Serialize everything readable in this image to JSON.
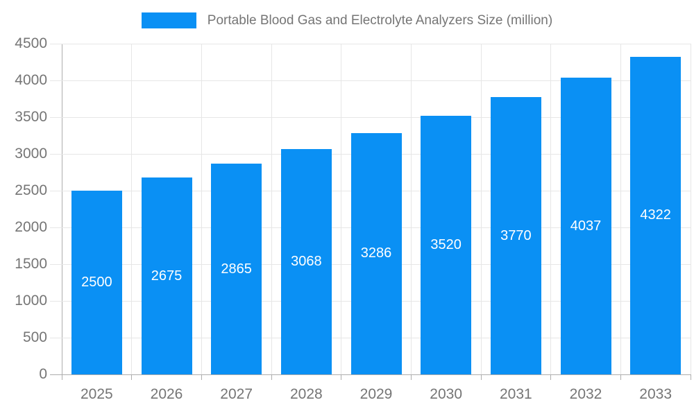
{
  "chart_data": {
    "type": "bar",
    "title": "Portable Blood Gas and Electrolyte Analyzers Size (million)",
    "legend": {
      "label": "Portable Blood Gas and Electrolyte Analyzers Size (million)",
      "position": "top"
    },
    "categories": [
      "2025",
      "2026",
      "2027",
      "2028",
      "2029",
      "2030",
      "2031",
      "2032",
      "2033"
    ],
    "values": [
      2500,
      2675,
      2865,
      3068,
      3286,
      3520,
      3770,
      4037,
      4322
    ],
    "bar_labels": [
      "2500",
      "2675",
      "2865",
      "3068",
      "3286",
      "3520",
      "3770",
      "4037",
      "4322"
    ],
    "xlabel": "",
    "ylabel": "",
    "ylim": [
      0,
      4500
    ],
    "y_ticks": [
      0,
      500,
      1000,
      1500,
      2000,
      2500,
      3000,
      3500,
      4000,
      4500
    ],
    "grid": true,
    "colors": {
      "bar": "#0a90f4",
      "bar_label": "#ffffff",
      "axis_text": "#757575",
      "grid_line": "#e6e6e6",
      "axis_line": "#adadad",
      "background": "#ffffff"
    }
  }
}
